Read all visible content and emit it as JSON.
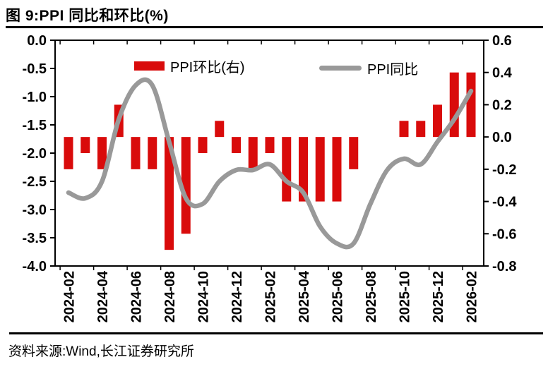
{
  "figure": {
    "title": "图 9:PPI 同比和环比(%)",
    "source": "资料来源:Wind,长江证券研究所"
  },
  "chart_data": {
    "type": "bar",
    "title": "PPI 同比和环比(%)",
    "categories": [
      "2024-02",
      "2024-03",
      "2024-04",
      "2024-05",
      "2024-06",
      "2024-07",
      "2024-08",
      "2024-09",
      "2024-10",
      "2024-11",
      "2024-12",
      "2025-01",
      "2025-02",
      "2025-03",
      "2025-04",
      "2025-05",
      "2025-06",
      "2025-07",
      "2025-08",
      "2025-09",
      "2025-10",
      "2025-11",
      "2025-12",
      "2026-01",
      "2026-02"
    ],
    "x_tick_labels": [
      "2024-02",
      "2024-04",
      "2024-06",
      "2024-08",
      "2024-10",
      "2024-12",
      "2025-02",
      "2025-04",
      "2025-06",
      "2025-08",
      "2025-10",
      "2025-12",
      "2026-02"
    ],
    "series": [
      {
        "name": "PPI环比(右)",
        "type": "bar",
        "axis": "right",
        "color": "#d90b0b",
        "values": [
          -0.2,
          -0.1,
          -0.2,
          0.2,
          -0.2,
          -0.2,
          -0.7,
          -0.6,
          -0.1,
          0.1,
          -0.1,
          -0.2,
          -0.1,
          -0.4,
          -0.4,
          -0.4,
          -0.4,
          -0.2,
          0.0,
          0.0,
          0.1,
          0.1,
          0.2,
          0.4,
          0.4
        ]
      },
      {
        "name": "PPI同比",
        "type": "line",
        "axis": "left",
        "color": "#999999",
        "values": [
          -2.7,
          -2.8,
          -2.5,
          -1.4,
          -0.8,
          -0.8,
          -1.8,
          -2.8,
          -2.9,
          -2.5,
          -2.3,
          -2.3,
          -2.2,
          -2.5,
          -2.7,
          -3.3,
          -3.6,
          -3.6,
          -2.9,
          -2.3,
          -2.1,
          -2.2,
          -1.8,
          -1.4,
          -0.9
        ]
      }
    ],
    "left_axis": {
      "ticks": [
        "0.0",
        "-0.5",
        "-1.0",
        "-1.5",
        "-2.0",
        "-2.5",
        "-3.0",
        "-3.5",
        "-4.0"
      ],
      "max": 0.0,
      "min": -4.0
    },
    "right_axis": {
      "ticks": [
        "0.6",
        "0.4",
        "0.2",
        "0.0",
        "-0.2",
        "-0.4",
        "-0.6",
        "-0.8"
      ],
      "max": 0.6,
      "min": -0.8
    },
    "legend_position": "top-inside",
    "grid": false
  }
}
